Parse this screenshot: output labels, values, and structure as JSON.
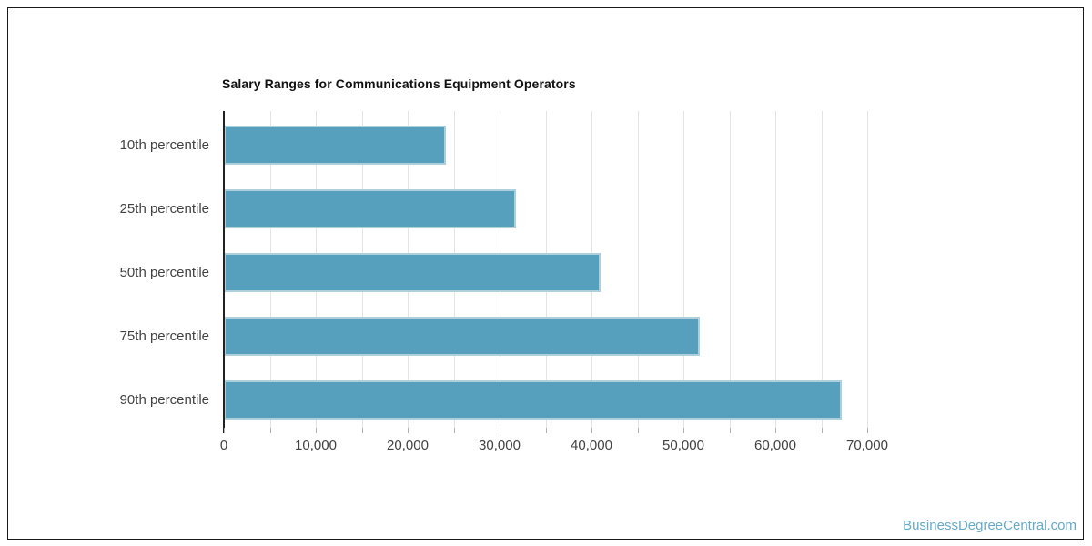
{
  "page": {
    "watermark": "BusinessDegreeCentral.com"
  },
  "chart_data": {
    "type": "bar",
    "orientation": "horizontal",
    "title": "Salary Ranges for Communications Equipment Operators",
    "categories": [
      "10th percentile",
      "25th percentile",
      "50th percentile",
      "75th percentile",
      "90th percentile"
    ],
    "values": [
      24150,
      31750,
      41000,
      51700,
      67200
    ],
    "xlabel": "",
    "ylabel": "",
    "xlim": [
      0,
      75000
    ],
    "x_major_ticks": [
      0,
      10000,
      20000,
      30000,
      40000,
      50000,
      60000,
      70000
    ],
    "x_major_tick_labels": [
      "0",
      "10,000",
      "20,000",
      "30,000",
      "40,000",
      "50,000",
      "60,000",
      "70,000"
    ],
    "x_minor_tick_step": 5000,
    "grid": "vertical gridlines every 5000, light gray",
    "legend": "none",
    "bar_color": "#57a0bd",
    "bar_border_color": "#aecfdc",
    "axis_line_color": "#212121",
    "gridline_color": "#e4e4e4",
    "text_color": "#424242",
    "watermark_color": "#67a9c9"
  }
}
